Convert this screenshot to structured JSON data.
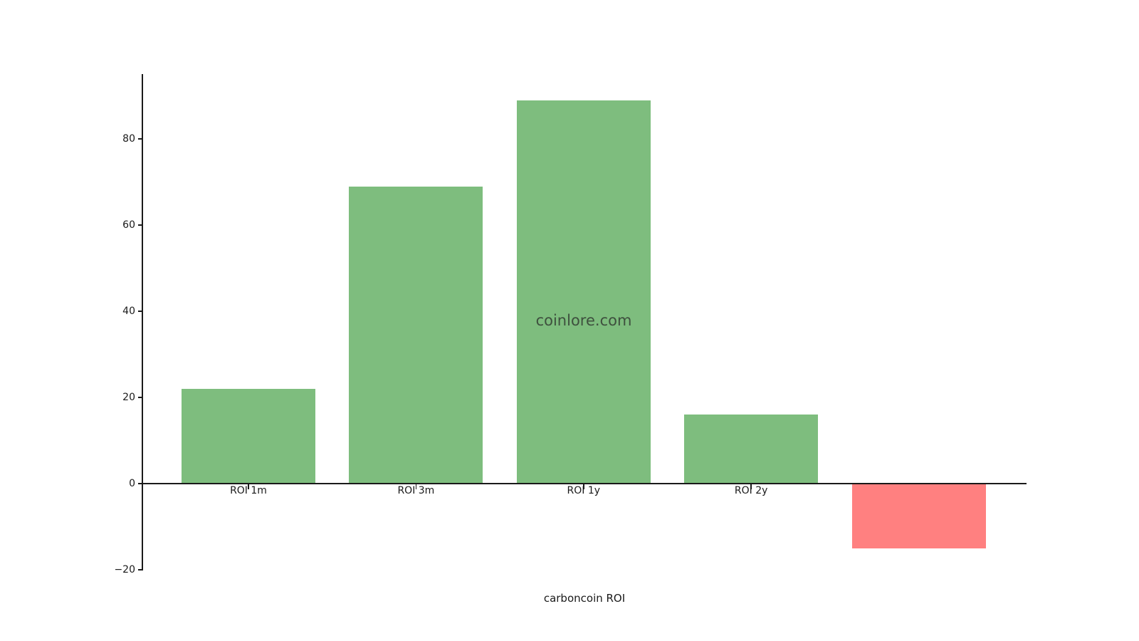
{
  "chart_data": {
    "type": "bar",
    "title": "",
    "xlabel": "carboncoin ROI",
    "ylabel": "",
    "categories": [
      "ROI 1m",
      "ROI 3m",
      "ROI 1y",
      "ROI 2y",
      ""
    ],
    "values": [
      22,
      69,
      89,
      16,
      -15
    ],
    "bar_colors": [
      "#7ebd7e",
      "#7ebd7e",
      "#7ebd7e",
      "#7ebd7e",
      "#ff8080"
    ],
    "yticks": [
      80,
      60,
      40,
      20,
      0,
      -20
    ],
    "ylim": [
      -20.5,
      95
    ],
    "grid": false,
    "legend": null,
    "watermark": "coinlore.com",
    "colors": {
      "positive": "#7ebd7e",
      "negative": "#ff8080",
      "axis": "#1a1a1a",
      "background": "#ffffff"
    }
  }
}
